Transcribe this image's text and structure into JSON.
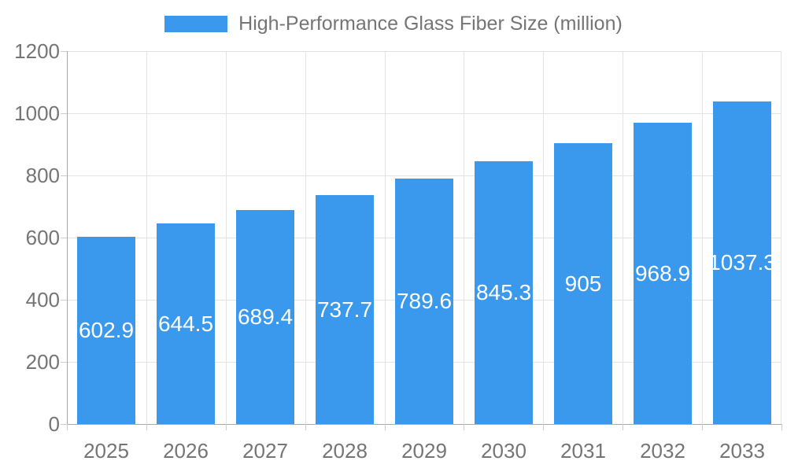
{
  "chart_data": {
    "type": "bar",
    "title": "High-Performance Glass Fiber Size (million)",
    "legend_entries": [
      "High-Performance Glass Fiber Size (million)"
    ],
    "legend_position": "top-center",
    "categories": [
      "2025",
      "2026",
      "2027",
      "2028",
      "2029",
      "2030",
      "2031",
      "2032",
      "2033"
    ],
    "values": [
      602.9,
      644.5,
      689.4,
      737.7,
      789.6,
      845.3,
      905,
      968.9,
      1037.3
    ],
    "value_labels": [
      "602.9",
      "644.5",
      "689.4",
      "737.7",
      "789.6",
      "845.3",
      "905",
      "968.9",
      "1037.3"
    ],
    "xlabel": "",
    "ylabel": "",
    "ylim": [
      0,
      1200
    ],
    "yticks": [
      0,
      200,
      400,
      600,
      800,
      1000,
      1200
    ],
    "grid": true,
    "colors": {
      "bar": "#3A99EC",
      "value_text": "#FFFFFF",
      "axis_text": "#757575",
      "gridline": "#E3E3E3",
      "axis_line": "#AAAAAA",
      "tick_mark": "#CCCCCC",
      "background": "#FFFFFF"
    }
  }
}
